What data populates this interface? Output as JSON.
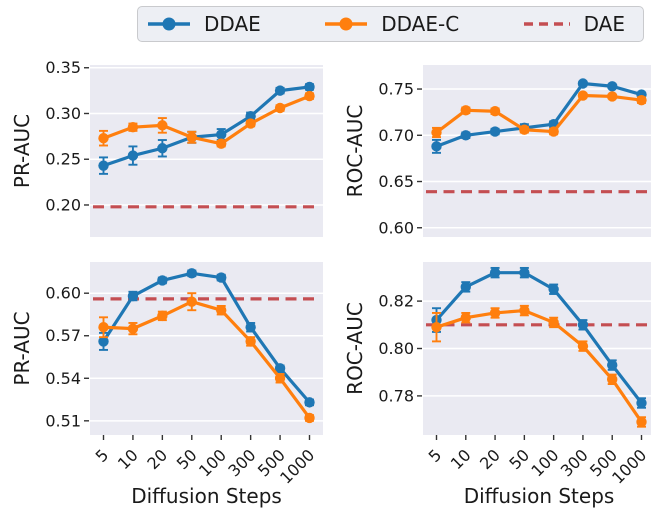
{
  "legend": {
    "items": [
      {
        "label": "DDAE",
        "color": "#1f77b4",
        "marker": "line-circle"
      },
      {
        "label": "DDAE-C",
        "color": "#ff7f0e",
        "marker": "line-circle"
      },
      {
        "label": "DAE",
        "color": "#c44e52",
        "marker": "dashed-line"
      }
    ]
  },
  "colors": {
    "ddae": "#1f77b4",
    "ddae_c": "#ff7f0e",
    "dae": "#c44e52",
    "panel_bg": "#eaeaf2",
    "grid": "#ffffff",
    "text": "#1a1a1a"
  },
  "chart_data": [
    {
      "type": "line",
      "position": "top-left",
      "ylabel": "PR-AUC",
      "xlabel": "",
      "show_xticklabels": false,
      "x": [
        5,
        10,
        20,
        50,
        100,
        300,
        500,
        1000
      ],
      "xticklabels": [
        "5",
        "10",
        "20",
        "50",
        "100",
        "300",
        "500",
        "1000"
      ],
      "yticks": [
        0.2,
        0.25,
        0.3,
        0.35
      ],
      "ylim": [
        0.165,
        0.353
      ],
      "series": [
        {
          "name": "DDAE",
          "color": "#1f77b4",
          "values": [
            0.243,
            0.254,
            0.262,
            0.274,
            0.277,
            0.297,
            0.325,
            0.329
          ],
          "err": [
            0.009,
            0.01,
            0.009,
            0.006,
            0.006,
            0.004,
            0.003,
            0.003
          ]
        },
        {
          "name": "DDAE-C",
          "color": "#ff7f0e",
          "values": [
            0.273,
            0.285,
            0.287,
            0.274,
            0.267,
            0.289,
            0.306,
            0.319
          ],
          "err": [
            0.008,
            0.004,
            0.008,
            0.006,
            0.003,
            0.003,
            0.003,
            0.003
          ]
        }
      ],
      "baseline": {
        "name": "DAE",
        "value": 0.198,
        "color": "#c44e52",
        "style": "dashed"
      }
    },
    {
      "type": "line",
      "position": "top-right",
      "ylabel": "ROC-AUC",
      "xlabel": "",
      "show_xticklabels": false,
      "x": [
        5,
        10,
        20,
        50,
        100,
        300,
        500,
        1000
      ],
      "xticklabels": [
        "5",
        "10",
        "20",
        "50",
        "100",
        "300",
        "500",
        "1000"
      ],
      "yticks": [
        0.6,
        0.65,
        0.7,
        0.75
      ],
      "ylim": [
        0.59,
        0.776
      ],
      "series": [
        {
          "name": "DDAE",
          "color": "#1f77b4",
          "values": [
            0.688,
            0.7,
            0.704,
            0.708,
            0.712,
            0.756,
            0.753,
            0.744
          ],
          "err": [
            0.007,
            0.003,
            0.003,
            0.004,
            0.003,
            0.002,
            0.002,
            0.002
          ]
        },
        {
          "name": "DDAE-C",
          "color": "#ff7f0e",
          "values": [
            0.703,
            0.727,
            0.726,
            0.706,
            0.704,
            0.743,
            0.742,
            0.738
          ],
          "err": [
            0.005,
            0.003,
            0.003,
            0.003,
            0.003,
            0.002,
            0.002,
            0.003
          ]
        }
      ],
      "baseline": {
        "name": "DAE",
        "value": 0.639,
        "color": "#c44e52",
        "style": "dashed"
      }
    },
    {
      "type": "line",
      "position": "bottom-left",
      "ylabel": "PR-AUC",
      "xlabel": "Diffusion Steps",
      "show_xticklabels": true,
      "x": [
        5,
        10,
        20,
        50,
        100,
        300,
        500,
        1000
      ],
      "xticklabels": [
        "5",
        "10",
        "20",
        "50",
        "100",
        "300",
        "500",
        "1000"
      ],
      "yticks": [
        0.51,
        0.54,
        0.57,
        0.6
      ],
      "ylim": [
        0.5,
        0.622
      ],
      "series": [
        {
          "name": "DDAE",
          "color": "#1f77b4",
          "values": [
            0.566,
            0.598,
            0.609,
            0.614,
            0.611,
            0.576,
            0.547,
            0.523
          ],
          "err": [
            0.006,
            0.003,
            0.002,
            0.002,
            0.002,
            0.003,
            0.002,
            0.002
          ]
        },
        {
          "name": "DDAE-C",
          "color": "#ff7f0e",
          "values": [
            0.576,
            0.575,
            0.584,
            0.594,
            0.588,
            0.566,
            0.54,
            0.512
          ],
          "err": [
            0.007,
            0.004,
            0.003,
            0.006,
            0.003,
            0.003,
            0.003,
            0.002
          ]
        }
      ],
      "baseline": {
        "name": "DAE",
        "value": 0.596,
        "color": "#c44e52",
        "style": "dashed"
      }
    },
    {
      "type": "line",
      "position": "bottom-right",
      "ylabel": "ROC-AUC",
      "xlabel": "Diffusion Steps",
      "show_xticklabels": true,
      "x": [
        5,
        10,
        20,
        50,
        100,
        300,
        500,
        1000
      ],
      "xticklabels": [
        "5",
        "10",
        "20",
        "50",
        "100",
        "300",
        "500",
        "1000"
      ],
      "yticks": [
        0.78,
        0.8,
        0.82
      ],
      "ylim": [
        0.7635,
        0.8365
      ],
      "series": [
        {
          "name": "DDAE",
          "color": "#1f77b4",
          "values": [
            0.812,
            0.826,
            0.832,
            0.832,
            0.825,
            0.81,
            0.793,
            0.777
          ],
          "err": [
            0.005,
            0.002,
            0.002,
            0.002,
            0.002,
            0.002,
            0.002,
            0.002
          ]
        },
        {
          "name": "DDAE-C",
          "color": "#ff7f0e",
          "values": [
            0.809,
            0.813,
            0.815,
            0.816,
            0.811,
            0.801,
            0.787,
            0.769
          ],
          "err": [
            0.006,
            0.002,
            0.002,
            0.002,
            0.002,
            0.002,
            0.002,
            0.002
          ]
        }
      ],
      "baseline": {
        "name": "DAE",
        "value": 0.81,
        "color": "#c44e52",
        "style": "dashed"
      }
    }
  ]
}
